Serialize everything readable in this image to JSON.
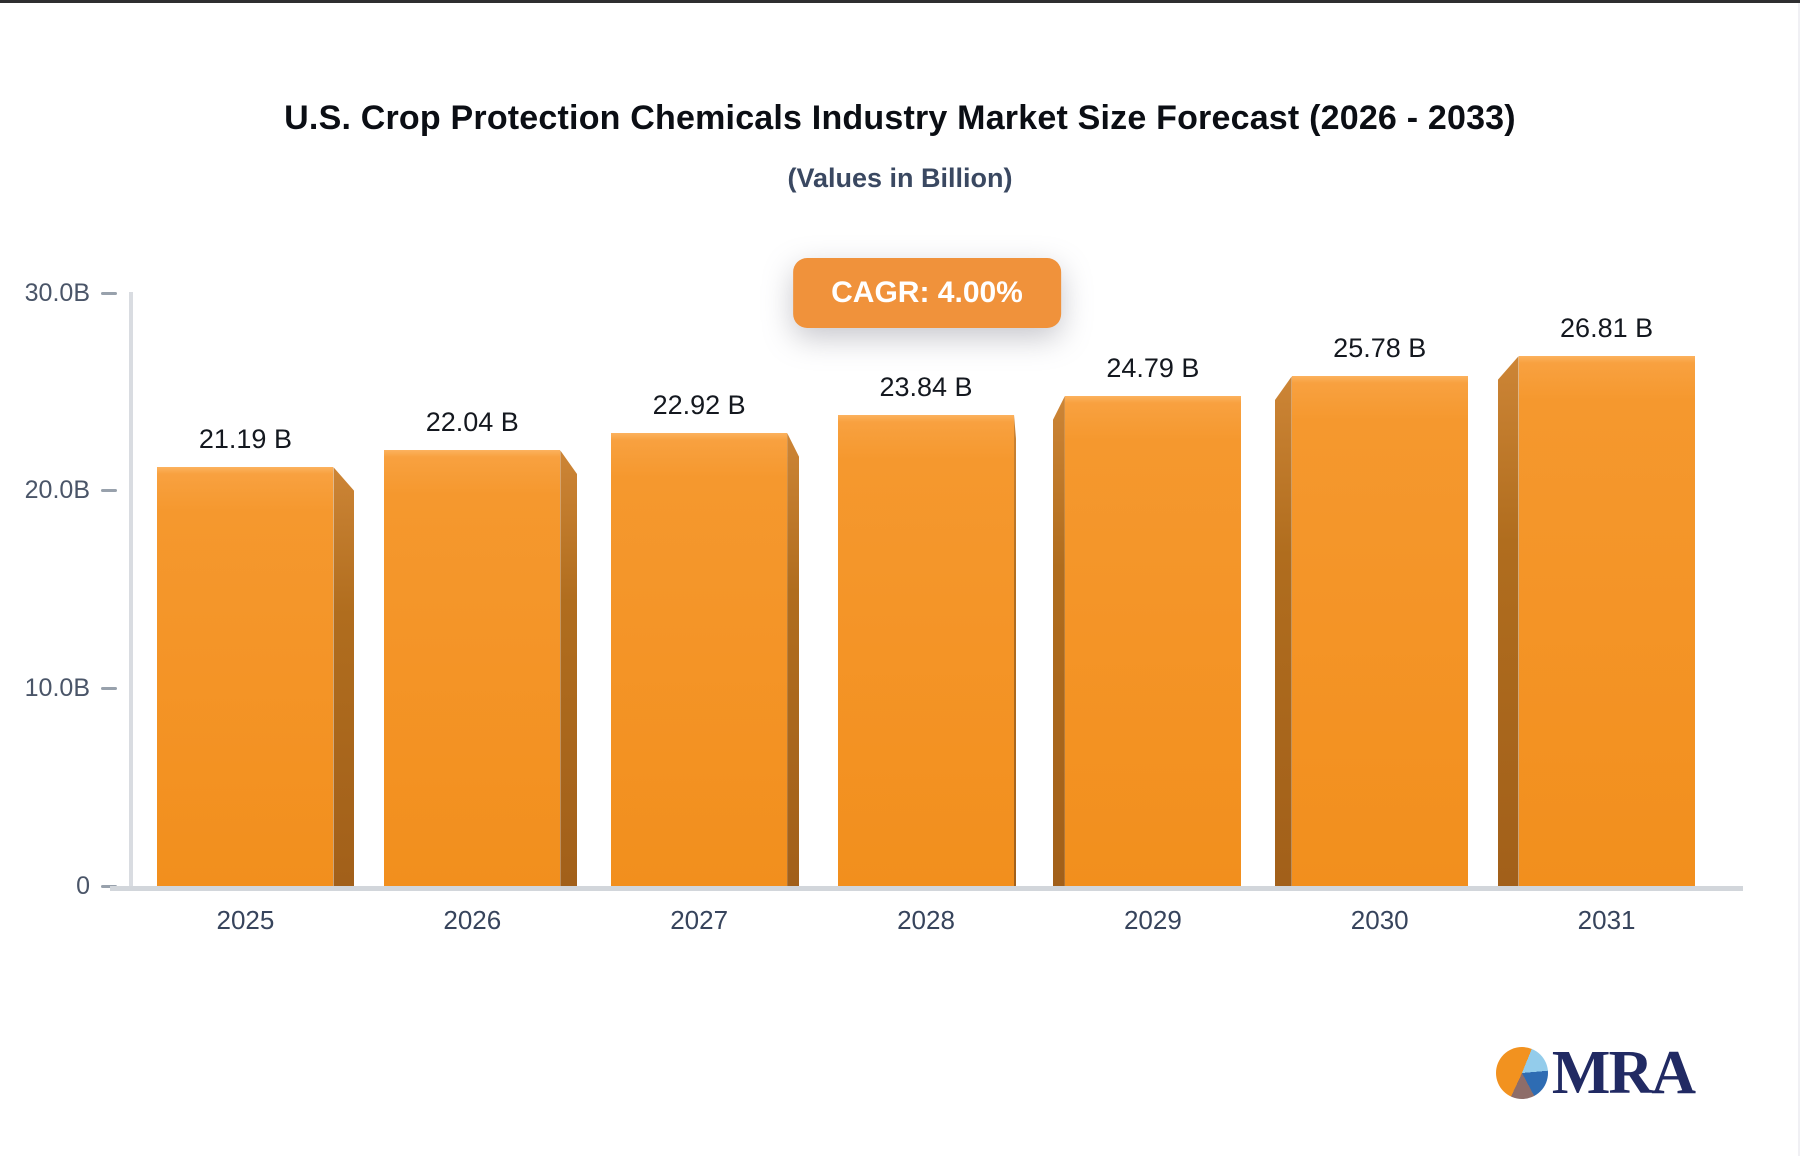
{
  "chart_data": {
    "type": "bar",
    "title": "U.S. Crop Protection Chemicals Industry Market Size Forecast (2026 - 2033)",
    "subtitle": "(Values in Billion)",
    "categories": [
      "2025",
      "2026",
      "2027",
      "2028",
      "2029",
      "2030",
      "2031"
    ],
    "values": [
      21.19,
      22.04,
      22.92,
      23.84,
      24.79,
      25.78,
      26.81
    ],
    "value_labels": [
      "21.19 B",
      "22.04 B",
      "22.92 B",
      "23.84 B",
      "24.79 B",
      "25.78 B",
      "26.81 B"
    ],
    "xlabel": "",
    "ylabel": "",
    "ylim": [
      0,
      30
    ],
    "yticks": [
      {
        "value": 0,
        "label": "0"
      },
      {
        "value": 10,
        "label": "10.0B"
      },
      {
        "value": 20,
        "label": "20.0B"
      },
      {
        "value": 30,
        "label": "30.0B"
      }
    ],
    "grid": false,
    "legend": false,
    "annotations": [
      "CAGR: 4.00%"
    ],
    "bar_color": "#F5982E",
    "bar_side_color": "#B06D1E",
    "badge_bg": "#F0923B",
    "axis_color": "#D9DCE1",
    "baseline_color": "#D2D6DB"
  },
  "logo": {
    "icon": "pie-chart-icon",
    "text": "MRA",
    "text_color": "#212A63"
  }
}
